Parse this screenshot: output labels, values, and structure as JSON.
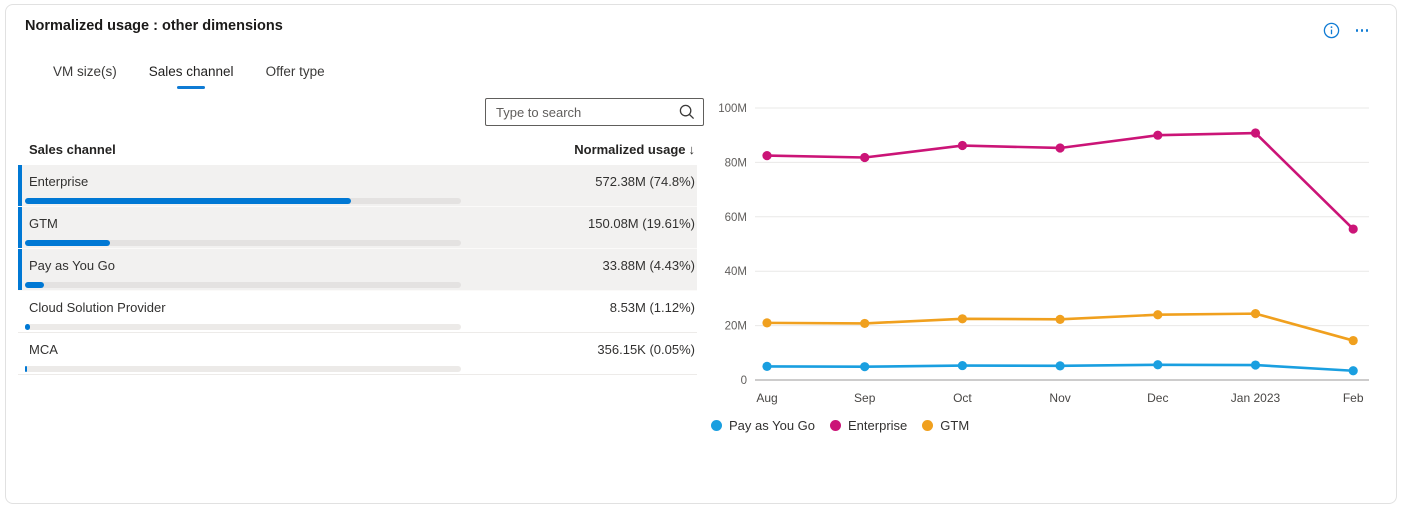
{
  "header": {
    "title": "Normalized usage : other dimensions",
    "info_icon": "info-circle",
    "more_icon": "ellipsis",
    "accent": "#0f7bd4"
  },
  "tabs": {
    "items": [
      {
        "label": "VM size(s)",
        "active": false
      },
      {
        "label": "Sales channel",
        "active": true
      },
      {
        "label": "Offer type",
        "active": false
      }
    ]
  },
  "search": {
    "placeholder": "Type to search",
    "icon": "magnifier"
  },
  "table": {
    "columns": [
      "Sales channel",
      "Normalized usage"
    ],
    "sort": {
      "column": "Normalized usage",
      "direction": "desc",
      "arrow": "↓"
    },
    "bar_color": "#0078d4",
    "rows": [
      {
        "label": "Enterprise",
        "value": "572.38M (74.8%)",
        "pct": 74.8,
        "selected": true
      },
      {
        "label": "GTM",
        "value": "150.08M (19.61%)",
        "pct": 19.61,
        "selected": true
      },
      {
        "label": "Pay as You Go",
        "value": "33.88M (4.43%)",
        "pct": 4.43,
        "selected": true
      },
      {
        "label": "Cloud Solution Provider",
        "value": "8.53M (1.12%)",
        "pct": 1.12,
        "selected": false
      },
      {
        "label": "MCA",
        "value": "356.15K (0.05%)",
        "pct": 0.05,
        "selected": false
      }
    ]
  },
  "chart_data": {
    "type": "line",
    "x": [
      "Aug",
      "Sep",
      "Oct",
      "Nov",
      "Dec",
      "Jan 2023",
      "Feb"
    ],
    "series": [
      {
        "name": "Pay as You Go",
        "color": "#1a9fe0",
        "values": [
          5.0,
          4.9,
          5.3,
          5.2,
          5.6,
          5.5,
          3.4
        ]
      },
      {
        "name": "Enterprise",
        "color": "#cb1477",
        "values": [
          82.5,
          81.8,
          86.2,
          85.3,
          90.0,
          90.8,
          55.5
        ]
      },
      {
        "name": "GTM",
        "color": "#f0a01e",
        "values": [
          21.0,
          20.8,
          22.5,
          22.3,
          24.0,
          24.4,
          14.5
        ]
      }
    ],
    "unit": "M",
    "ylim": [
      0,
      100
    ],
    "yticks": [
      {
        "v": 100,
        "label": "100M"
      },
      {
        "v": 80,
        "label": "80M"
      },
      {
        "v": 60,
        "label": "60M"
      },
      {
        "v": 40,
        "label": "40M"
      },
      {
        "v": 20,
        "label": "20M"
      },
      {
        "v": 0,
        "label": "0"
      }
    ],
    "grid": true,
    "legend_position": "bottom"
  }
}
